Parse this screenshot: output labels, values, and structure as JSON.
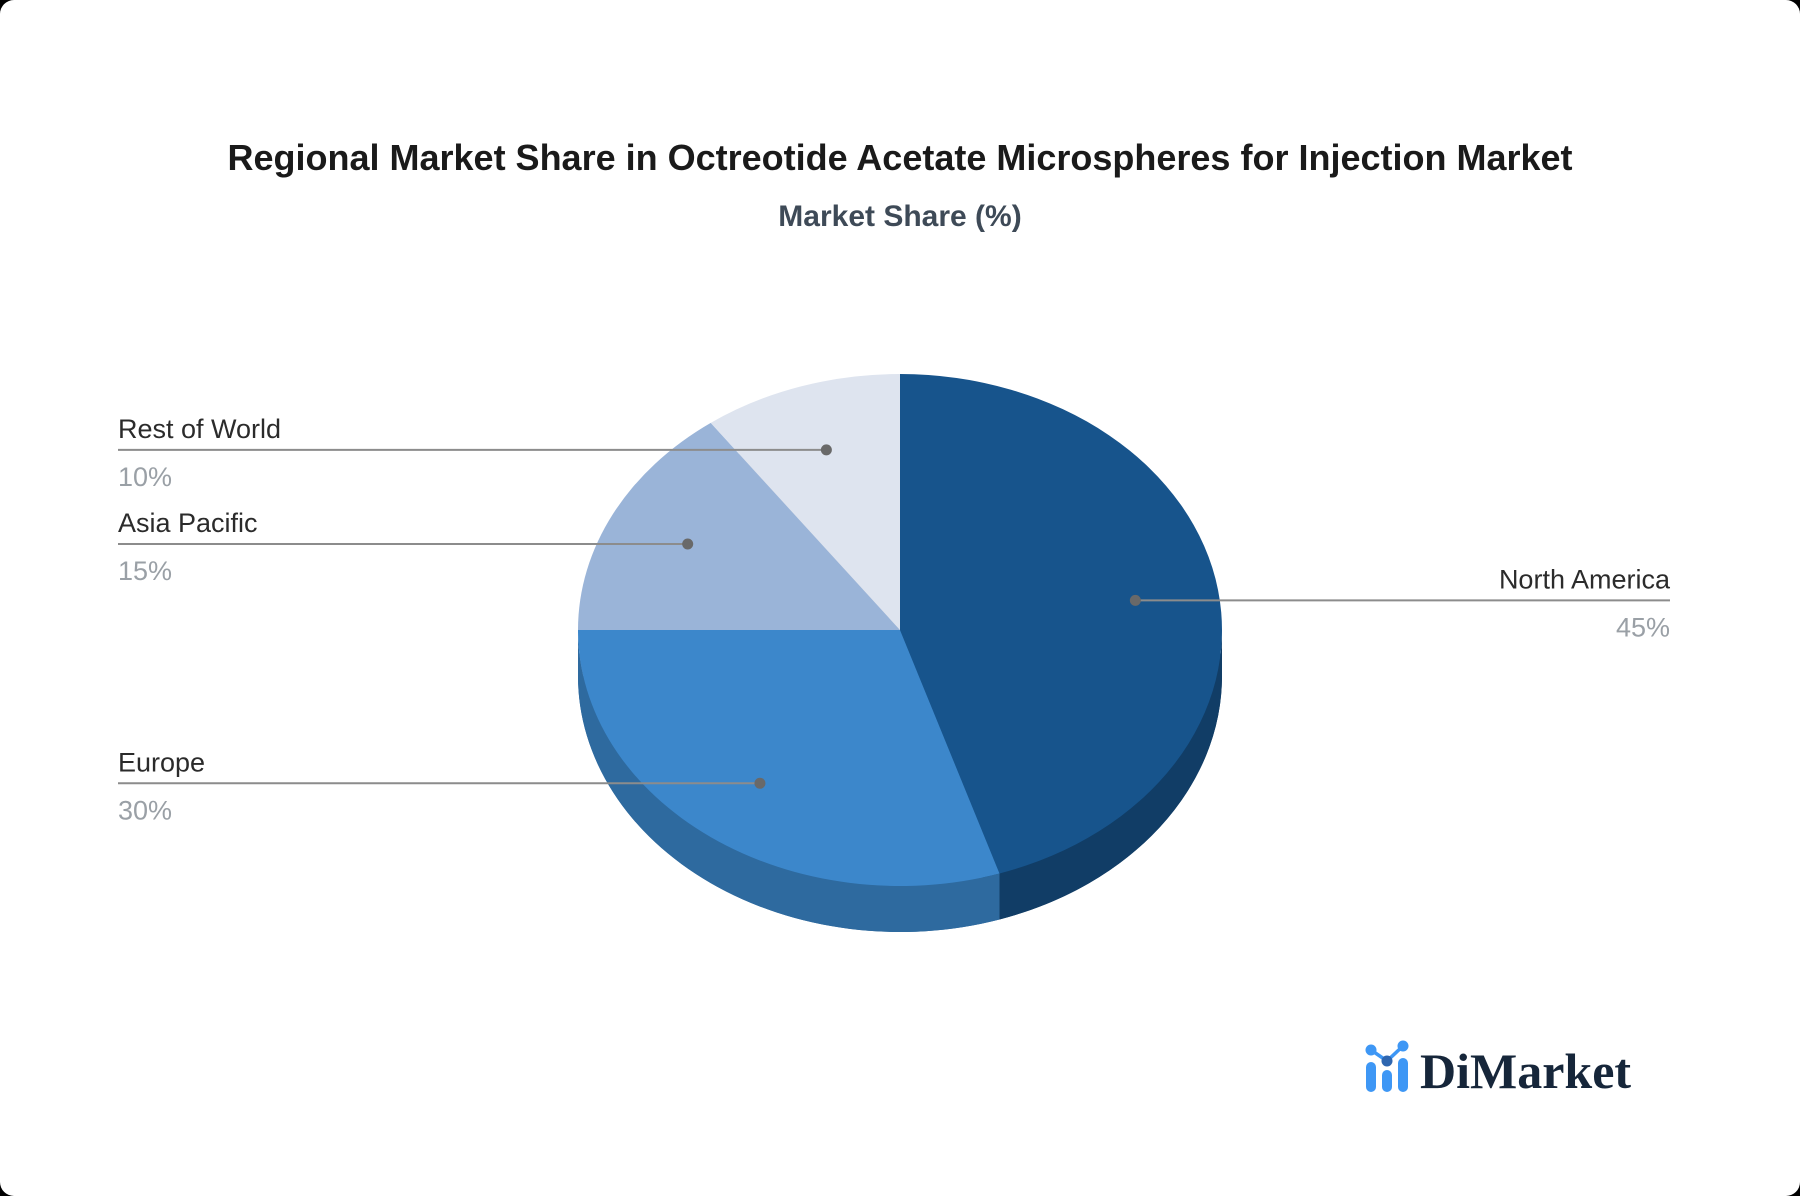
{
  "title": "Regional Market Share in Octreotide Acetate Microspheres for Injection Market",
  "subtitle": "Market Share (%)",
  "chart_data": {
    "type": "pie",
    "title": "Regional Market Share in Octreotide Acetate Microspheres for Injection Market",
    "subtitle": "Market Share (%)",
    "unit": "%",
    "effect": "3d",
    "start_angle_deg": 0,
    "direction": "clockwise",
    "legend": "none",
    "slices": [
      {
        "label": "North America",
        "value": 45,
        "display": "45%",
        "color": "#17548C",
        "side_color": "#113D66",
        "label_side": "right"
      },
      {
        "label": "Europe",
        "value": 30,
        "display": "30%",
        "color": "#3C87CB",
        "side_color": "#2E6A9F",
        "label_side": "left"
      },
      {
        "label": "Asia Pacific",
        "value": 15,
        "display": "15%",
        "color": "#9AB4D8",
        "side_color": "#7E95B8",
        "label_side": "left"
      },
      {
        "label": "Rest of World",
        "value": 10,
        "display": "10%",
        "color": "#DEE4EF",
        "side_color": "#B7C1D3",
        "label_side": "left"
      }
    ]
  },
  "colors": {
    "title": "#1A1A1A",
    "subtitle": "#3E4A57",
    "slice_label": "#2B2B2B",
    "slice_value": "#9AA0A6",
    "leader_line": "#8C8C8C",
    "leader_dot": "#696969",
    "logo_bar_blue": "#3E97F5",
    "logo_dot_dark": "#2E66B0",
    "logo_text_navy": "#16263A"
  },
  "logo": {
    "text": "DiMarket",
    "icon": "bar-line-chart-icon"
  }
}
